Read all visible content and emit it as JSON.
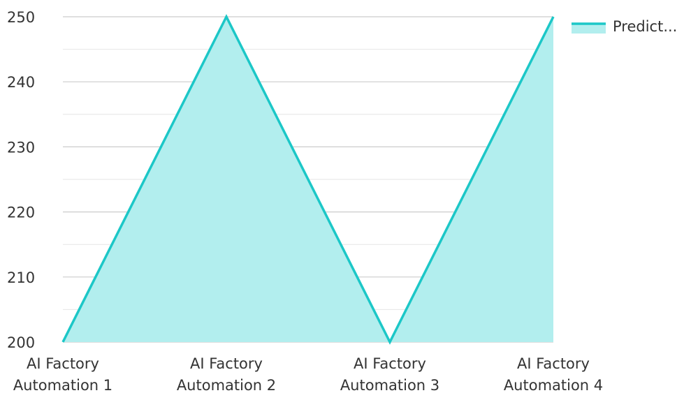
{
  "chart_data": {
    "type": "area",
    "categories": [
      "AI Factory Automation 1",
      "AI Factory Automation 2",
      "AI Factory Automation 3",
      "AI Factory Automation 4"
    ],
    "category_lines": [
      [
        "AI Factory",
        "Automation 1"
      ],
      [
        "AI Factory",
        "Automation 2"
      ],
      [
        "AI Factory",
        "Automation 3"
      ],
      [
        "AI Factory",
        "Automation 4"
      ]
    ],
    "series": [
      {
        "name": "Predict...",
        "values": [
          200,
          250,
          200,
          250
        ]
      }
    ],
    "ylim": [
      200,
      250
    ],
    "yticks": [
      200,
      210,
      220,
      230,
      240,
      250
    ],
    "grid": true,
    "legend": "top-right",
    "colors": {
      "line": "#1cc7c7",
      "fill": "#b2eeee",
      "grid_major": "#cccccc",
      "grid_minor": "#e6e6e6",
      "text": "#333333"
    }
  }
}
